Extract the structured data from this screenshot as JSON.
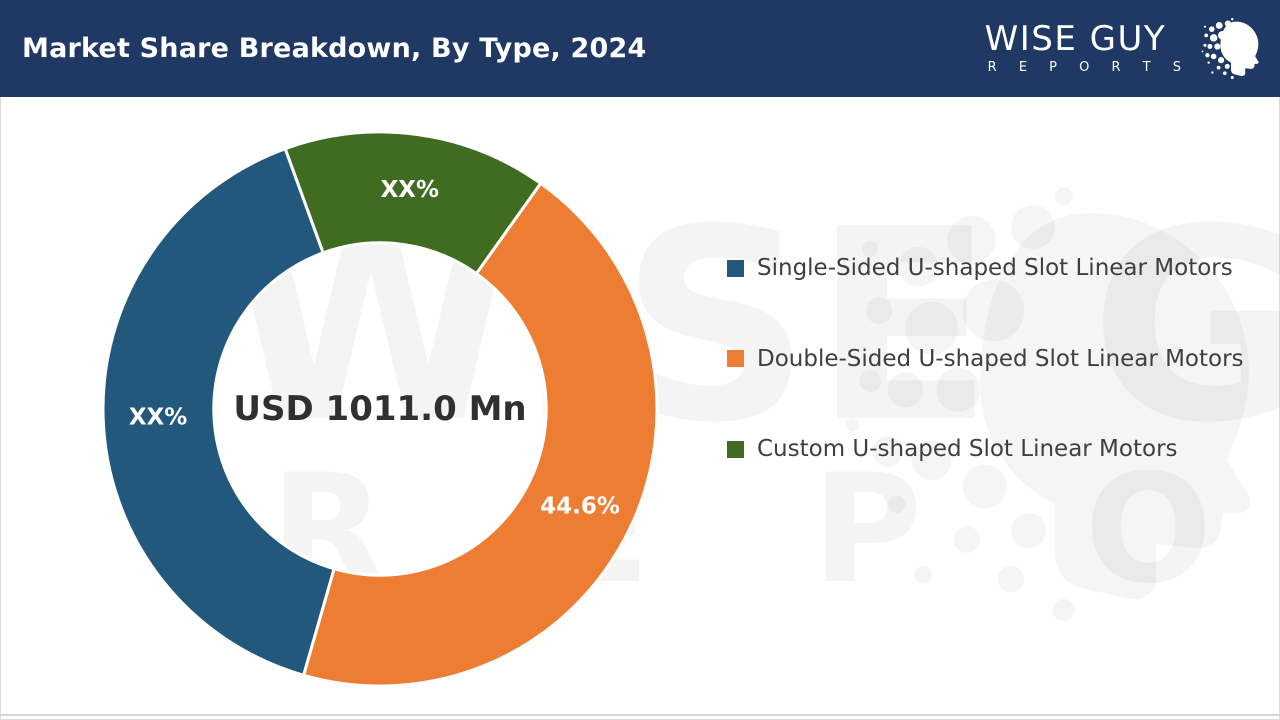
{
  "header": {
    "title": "Market Share Breakdown, By Type, 2024",
    "bg_color": "#203864",
    "brand": {
      "line1": "WISE GUY",
      "line2": "R E P O R T S"
    }
  },
  "watermark": {
    "line1": "WISE GUY",
    "line2": "R E P O R T S"
  },
  "chart_data": {
    "type": "pie",
    "variant": "donut",
    "title": "Market Share Breakdown, By Type, 2024",
    "center_label": "USD 1011.0 Mn",
    "start_angle_deg": 110,
    "counterclockwise": true,
    "inner_radius_ratio": 0.6,
    "legend_position": "right",
    "gridlines": false,
    "series": [
      {
        "name": "Single-Sided U-shaped Slot Linear Motors",
        "value_pct": 40.0,
        "displayed_label": "XX%",
        "color": "#22587C"
      },
      {
        "name": "Double-Sided U-shaped Slot Linear Motors",
        "value_pct": 44.6,
        "displayed_label": "44.6%",
        "color": "#EC7D33"
      },
      {
        "name": "Custom U-shaped Slot Linear Motors",
        "value_pct": 15.4,
        "displayed_label": "XX%",
        "color": "#3F6C20"
      }
    ]
  },
  "footer": {
    "divider_color": "#d6d6d6"
  }
}
